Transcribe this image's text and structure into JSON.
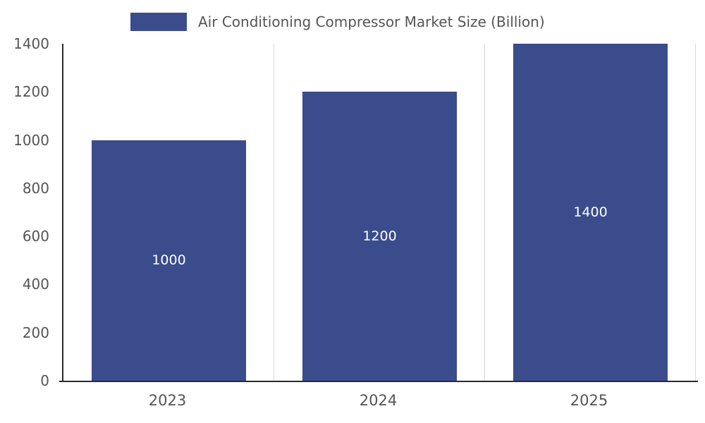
{
  "chart_data": {
    "type": "bar",
    "title": "Air Conditioning Compressor Market Size (Billion)",
    "categories": [
      "2023",
      "2024",
      "2025"
    ],
    "values": [
      1000,
      1200,
      1400
    ],
    "value_labels": [
      "1000",
      "1200",
      "1400"
    ],
    "xlabel": "",
    "ylabel": "",
    "ylim": [
      0,
      1400
    ],
    "yticks": [
      0,
      200,
      400,
      600,
      800,
      1000,
      1200,
      1400
    ],
    "grid": "vertical-category-boundaries",
    "legend_position": "top",
    "colors": {
      "bar": "#3a4c8c",
      "bar_label": "#ffffff",
      "tick_label": "#555555",
      "title": "#555555",
      "gridline": "#d8d8d8",
      "axis_line": "#2b2b2b",
      "background": "#ffffff"
    }
  }
}
